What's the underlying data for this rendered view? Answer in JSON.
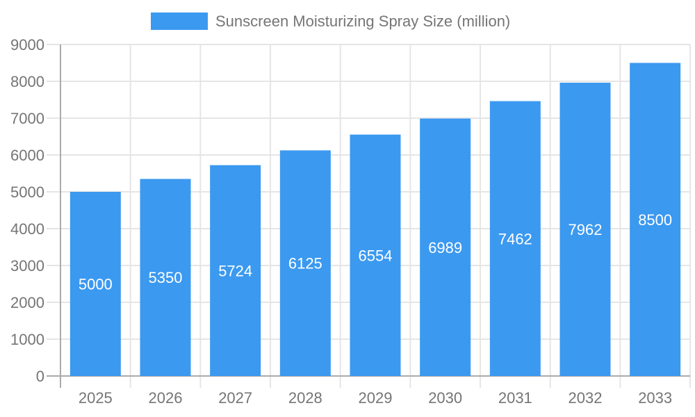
{
  "chart_data": {
    "type": "bar",
    "title": "",
    "legend": "Sunscreen Moisturizing Spray Size (million)",
    "legend_position": "top",
    "categories": [
      "2025",
      "2026",
      "2027",
      "2028",
      "2029",
      "2030",
      "2031",
      "2032",
      "2033"
    ],
    "values": [
      5000,
      5350,
      5724,
      6125,
      6554,
      6989,
      7462,
      7962,
      8500
    ],
    "value_labels_shown": true,
    "xlabel": "",
    "ylabel": "",
    "ylim": [
      0,
      9000
    ],
    "y_ticks": [
      0,
      1000,
      2000,
      3000,
      4000,
      5000,
      6000,
      7000,
      8000,
      9000
    ],
    "grid": true,
    "colors": {
      "bar": "#3B99F0",
      "value_label": "#FFFFFF",
      "axis_text": "#757575",
      "axis_line": "#AAAAAA",
      "grid_line": "#E5E5E5"
    }
  }
}
